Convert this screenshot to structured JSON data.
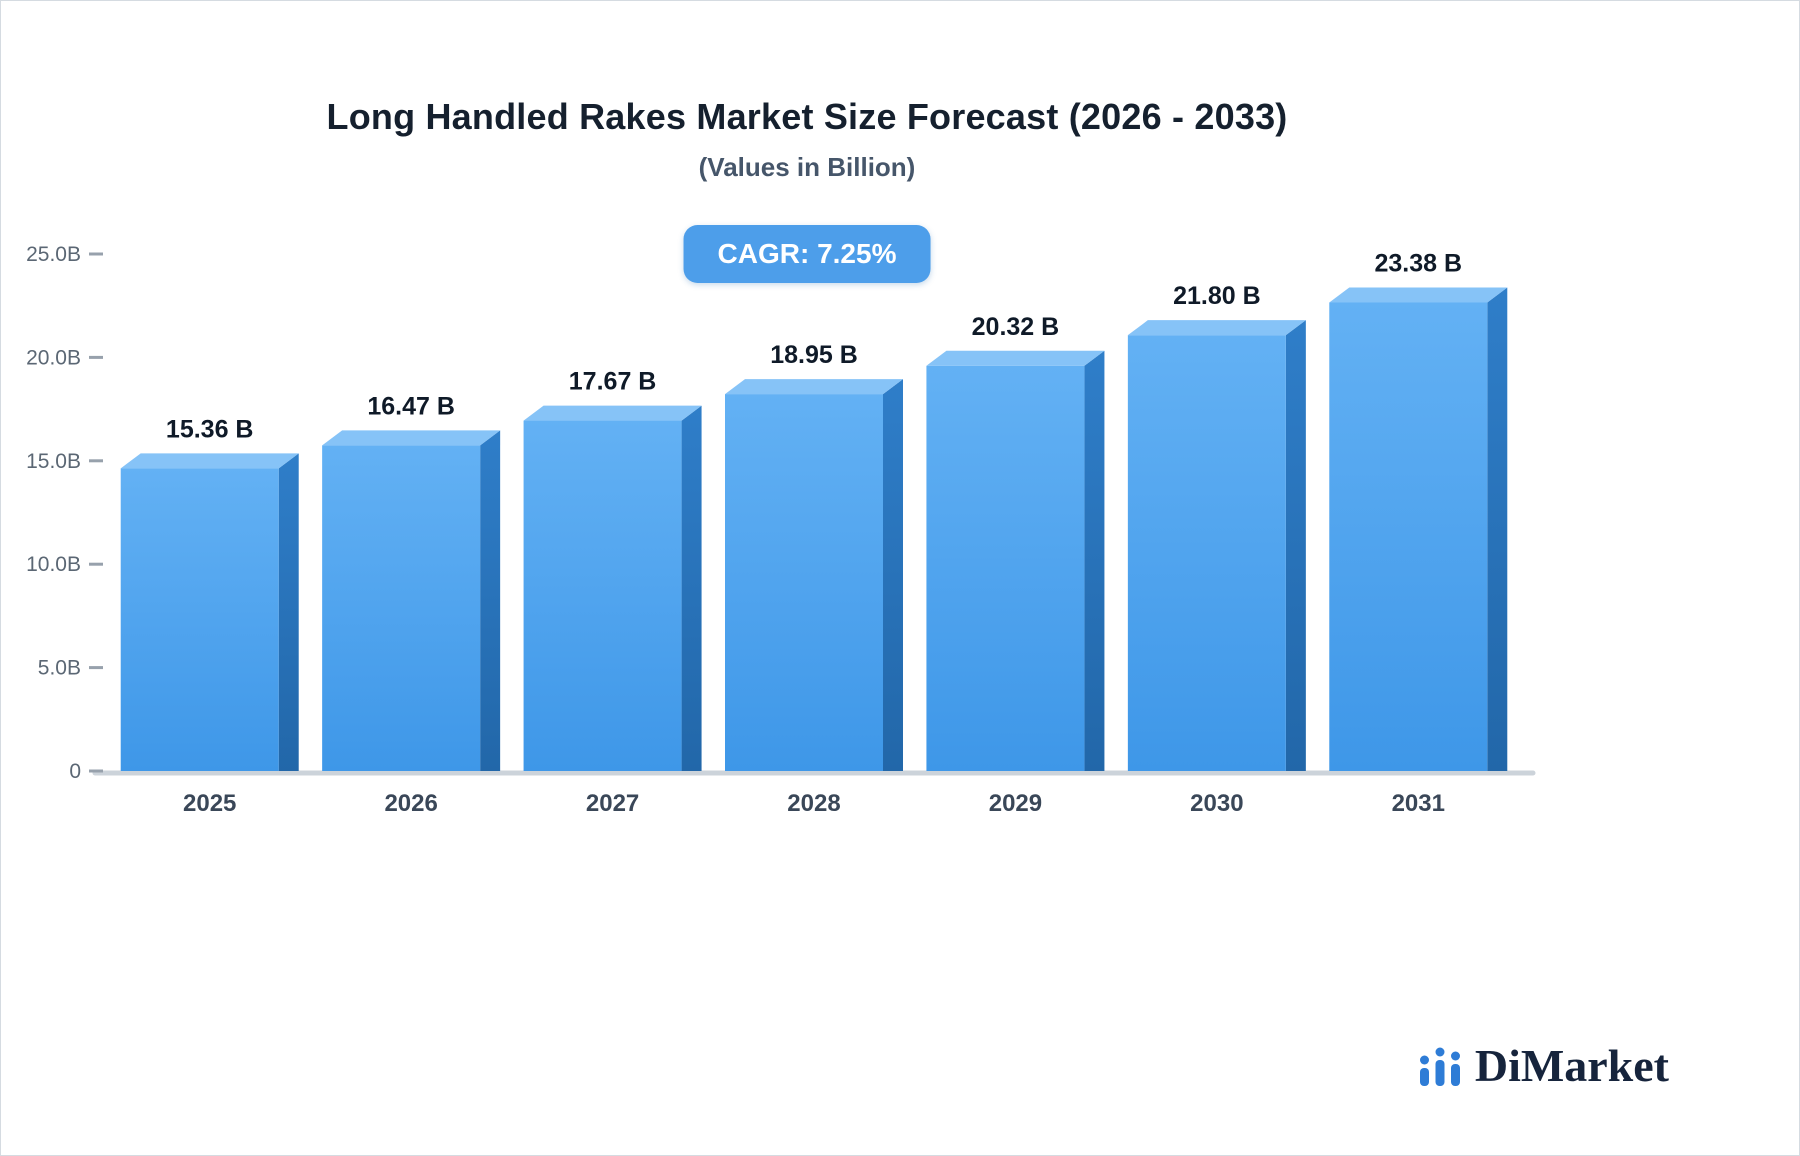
{
  "header": {
    "title": "Long Handled Rakes Market Size Forecast (2026 - 2033)",
    "subtitle": "(Values in Billion)"
  },
  "badge": {
    "label": "CAGR: 7.25%",
    "background": "#4d9eea",
    "text_color": "#ffffff"
  },
  "chart_data": {
    "type": "bar",
    "title": "Long Handled Rakes Market Size Forecast (2026 - 2033)",
    "subtitle": "(Values in Billion)",
    "cagr": "7.25%",
    "categories": [
      "2025",
      "2026",
      "2027",
      "2028",
      "2029",
      "2030",
      "2031"
    ],
    "values": [
      15.36,
      16.47,
      17.67,
      18.95,
      20.32,
      21.8,
      23.38
    ],
    "value_labels": [
      "15.36 B",
      "16.47 B",
      "17.67 B",
      "18.95 B",
      "20.32 B",
      "21.80 B",
      "23.38 B"
    ],
    "xlabel": "",
    "ylabel": "",
    "ylim": [
      0,
      25
    ],
    "yticks": [
      {
        "value": 25,
        "label": "25.0B"
      },
      {
        "value": 20,
        "label": "20.0B"
      },
      {
        "value": 15,
        "label": "15.0B"
      },
      {
        "value": 10,
        "label": "10.0B"
      },
      {
        "value": 5,
        "label": "5.0B"
      },
      {
        "value": 0,
        "label": "0"
      }
    ],
    "grid": false,
    "legend": false,
    "bar_colors": {
      "front_top": "#63b1f4",
      "front_bottom": "#3e97e8",
      "side_top": "#2f7ec9",
      "side_bottom": "#2267a9",
      "top": "#86c3f7"
    }
  },
  "logo": {
    "text": "DiMarket",
    "icon": "bar-chart-logo-icon",
    "color": "#16243c",
    "icon_color": "#2e7cd6"
  }
}
